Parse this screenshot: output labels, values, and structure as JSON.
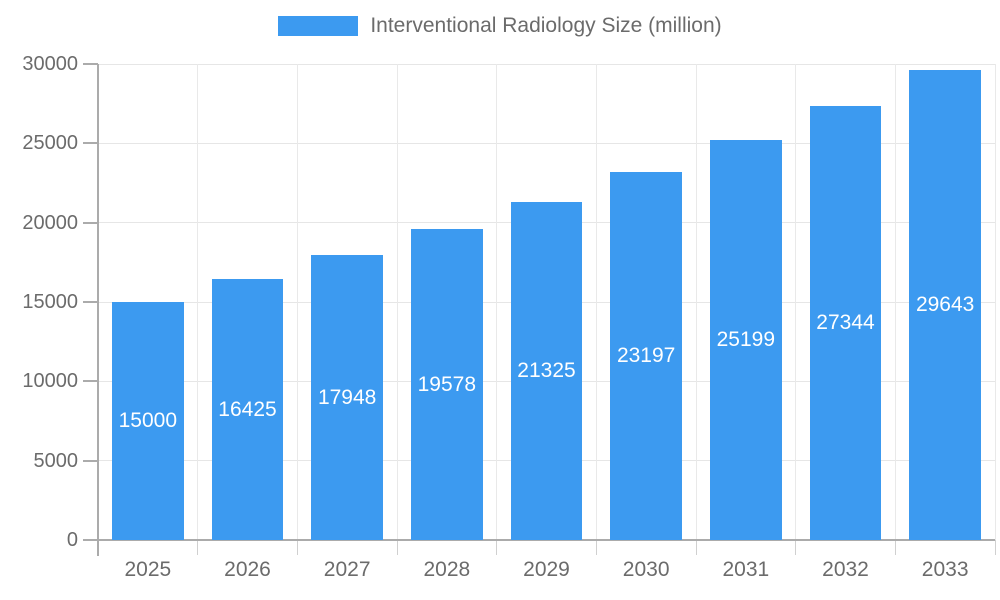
{
  "chart_data": {
    "type": "bar",
    "title": "Interventional Radiology Size (million)",
    "legend": [
      "Interventional Radiology Size (million)"
    ],
    "legend_position": "top",
    "categories": [
      "2025",
      "2026",
      "2027",
      "2028",
      "2029",
      "2030",
      "2031",
      "2032",
      "2033"
    ],
    "values": [
      15000,
      16425,
      17948,
      19578,
      21325,
      23197,
      25199,
      27344,
      29643
    ],
    "xlabel": "",
    "ylabel": "",
    "ylim": [
      0,
      30000
    ],
    "yticks": [
      0,
      5000,
      10000,
      15000,
      20000,
      25000,
      30000
    ],
    "grid": true,
    "value_labels": "inside-center",
    "colors": {
      "bar": "#3c9af0",
      "value_label": "#ffffff",
      "axis": "#ababab",
      "grid": "#e6e6e6",
      "tick_label": "#6b6b6b"
    }
  }
}
